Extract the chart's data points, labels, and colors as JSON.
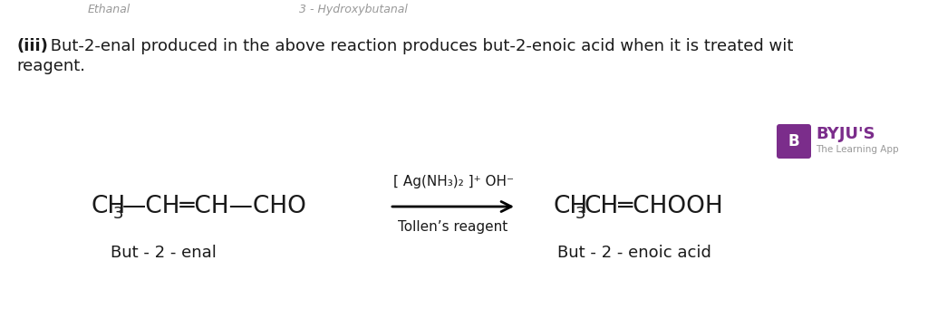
{
  "background_color": "#ffffff",
  "header_bold": "(iii)",
  "header_text": " But-2-enal produced in the above reaction produces but-2-enoic acid when it is treated wit",
  "header_text2": "reagent.",
  "top_text1": "Ethanal",
  "top_text2": "3 - Hydroxybutanal",
  "arrow_above": "[ Ag(NH₃)₂ ]⁺ OH⁻",
  "arrow_below": "Tollen’s reagent",
  "reactant_label": "But - 2 - enal",
  "product_label": "But - 2 - enoic acid",
  "byju_text": "BYJU'S",
  "byju_subtext": "The Learning App",
  "byju_box_color": "#7b2d8b",
  "byju_text_color": "#7b2d8b",
  "text_color": "#1a1a1a",
  "faded_color": "#999999",
  "font_size_header": 13,
  "font_size_formula": 19,
  "font_size_label": 13,
  "font_size_arrow_text": 11,
  "font_size_sub": 13
}
